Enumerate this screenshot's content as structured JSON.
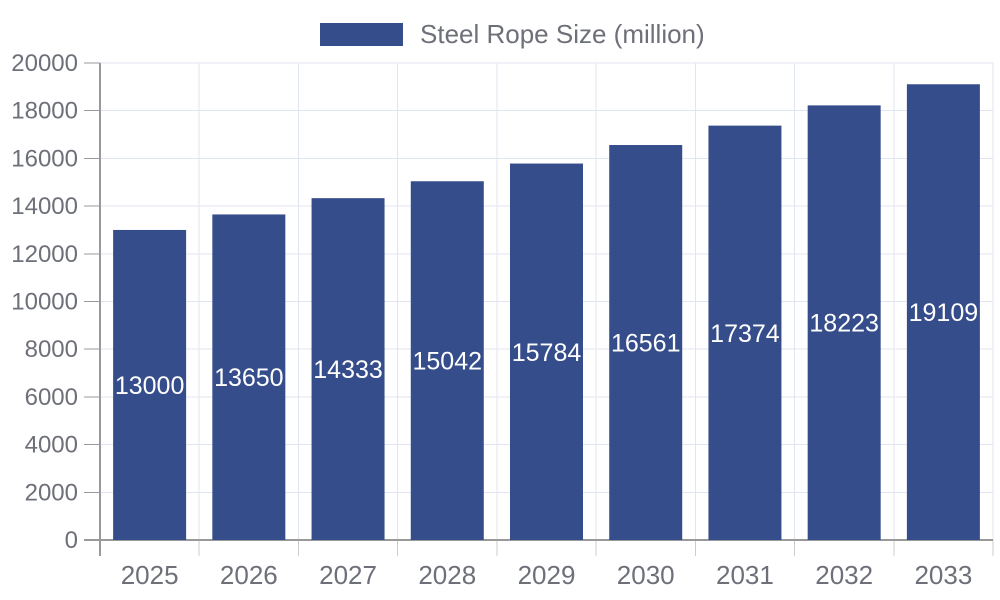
{
  "legend": {
    "label": "Steel Rope Size (million)"
  },
  "chart_data": {
    "type": "bar",
    "title": "Steel Rope Size (million)",
    "categories": [
      "2025",
      "2026",
      "2027",
      "2028",
      "2029",
      "2030",
      "2031",
      "2032",
      "2033"
    ],
    "values": [
      13000,
      13650,
      14333,
      15042,
      15784,
      16561,
      17374,
      18223,
      19109
    ],
    "xlabel": "",
    "ylabel": "",
    "ylim": [
      0,
      20000
    ],
    "ytick_step": 2000,
    "ytick_labels": [
      "0",
      "2000",
      "4000",
      "6000",
      "8000",
      "10000",
      "12000",
      "14000",
      "16000",
      "18000",
      "20000"
    ],
    "grid": true,
    "legend_position": "top",
    "value_labels_inside": true,
    "colors": {
      "bar": "#364D8B",
      "value_label": "#FFFFFF",
      "axis_text": "#6E7079",
      "axis_line": "#999999",
      "gridline": "#E0E6F1",
      "x_tick": "#CCCCCC"
    }
  }
}
